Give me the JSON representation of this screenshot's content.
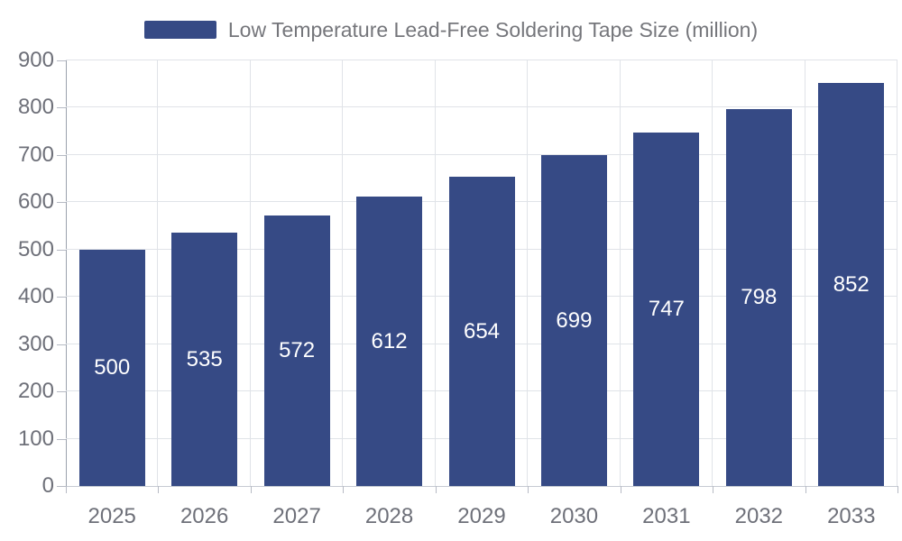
{
  "chart_data": {
    "type": "bar",
    "title": "Low Temperature Lead-Free Soldering Tape Size (million)",
    "categories": [
      "2025",
      "2026",
      "2027",
      "2028",
      "2029",
      "2030",
      "2031",
      "2032",
      "2033"
    ],
    "values": [
      500,
      535,
      572,
      612,
      654,
      699,
      747,
      798,
      852
    ],
    "xlabel": "",
    "ylabel": "",
    "ylim": [
      0,
      900
    ],
    "yticks": [
      0,
      100,
      200,
      300,
      400,
      500,
      600,
      700,
      800,
      900
    ],
    "grid": true,
    "legend_position": "top",
    "value_labels_shown": true
  },
  "colors": {
    "bar": "#364a85",
    "value_label": "#ffffff",
    "axis_label": "#6e7079",
    "legend_label": "#75767b",
    "gridline": "#e0e3e8",
    "axis_line_y": "#9ba1ac",
    "axis_line_x": "#c6cad2",
    "tick": "#b6bac4",
    "background": "#ffffff"
  }
}
